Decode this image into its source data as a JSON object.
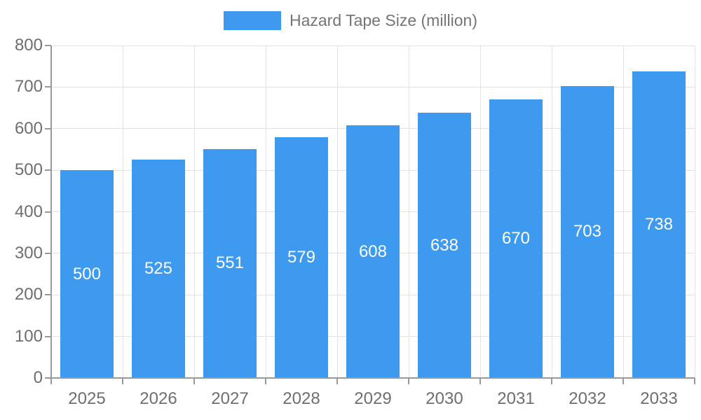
{
  "chart_data": {
    "type": "bar",
    "title": "",
    "legend_position": "top-center",
    "series_name": "Hazard Tape Size (million)",
    "categories": [
      "2025",
      "2026",
      "2027",
      "2028",
      "2029",
      "2030",
      "2031",
      "2032",
      "2033"
    ],
    "values": [
      500,
      525,
      551,
      579,
      608,
      638,
      670,
      703,
      738
    ],
    "value_labels": [
      "500",
      "525",
      "551",
      "579",
      "608",
      "638",
      "670",
      "703",
      "738"
    ],
    "xlabel": "",
    "ylabel": "",
    "ylim": [
      0,
      800
    ],
    "yticks": [
      0,
      100,
      200,
      300,
      400,
      500,
      600,
      700,
      800
    ],
    "grid": "horizontal-and-vertical",
    "bar_width_fraction": 0.74,
    "colors": {
      "bar": "#3d9aef",
      "bar_label": "#ffffff",
      "axis_text": "#6e6e6e",
      "legend_text": "#757575",
      "axis_line": "#999999",
      "gridline": "#e2e2e2",
      "background": "#ffffff"
    }
  }
}
